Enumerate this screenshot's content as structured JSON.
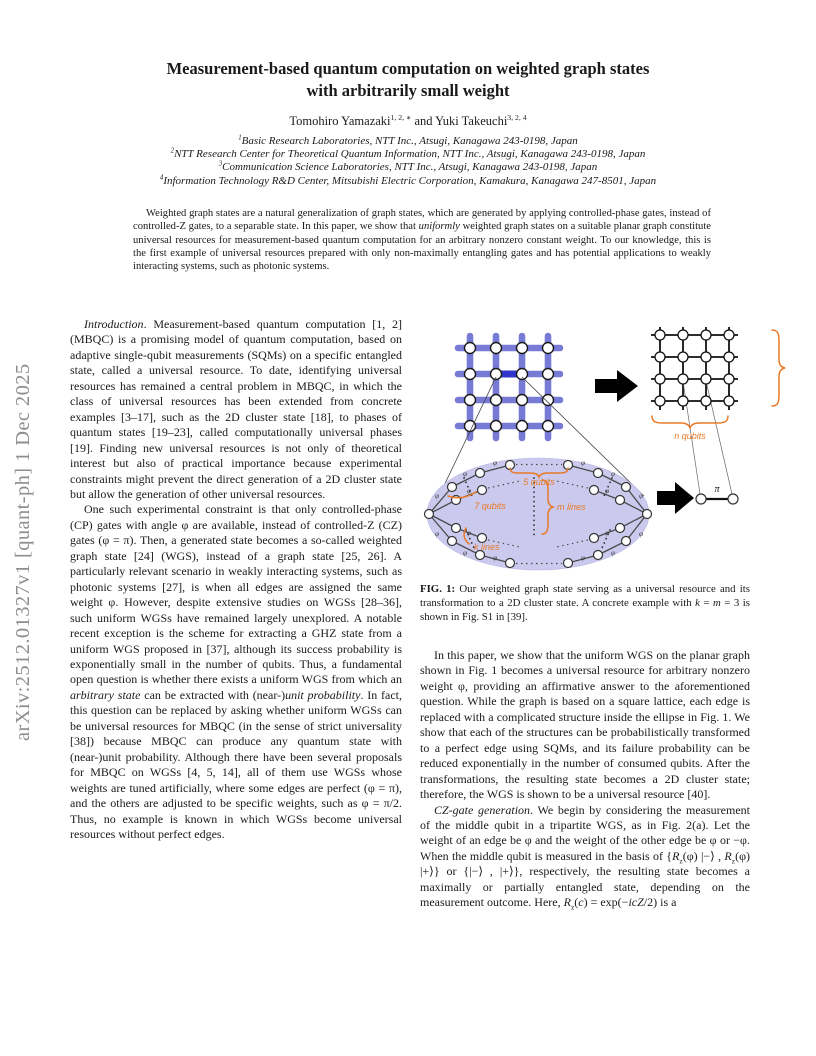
{
  "arxiv_stamp": "arXiv:2512.01327v1  [quant-ph]  1 Dec 2025",
  "header": {
    "title_line1": "Measurement-based quantum computation on weighted graph states",
    "title_line2": "with arbitrarily small weight",
    "authors_segments": [
      {
        "t": "Tomohiro Yamazaki"
      },
      {
        "t": "1, 2, ∗",
        "v": "sup"
      },
      {
        "t": " and Yuki Takeuchi"
      },
      {
        "t": "3, 2, 4",
        "v": "sup"
      }
    ],
    "affiliations": [
      [
        {
          "t": "1",
          "v": "sup"
        },
        {
          "t": "Basic Research Laboratories, NTT Inc., Atsugi, Kanagawa 243-0198, Japan"
        }
      ],
      [
        {
          "t": "2",
          "v": "sup"
        },
        {
          "t": "NTT Research Center for Theoretical Quantum Information, NTT Inc., Atsugi, Kanagawa 243-0198, Japan"
        }
      ],
      [
        {
          "t": "3",
          "v": "sup"
        },
        {
          "t": "Communication Science Laboratories, NTT Inc., Atsugi, Kanagawa 243-0198, Japan"
        }
      ],
      [
        {
          "t": "4",
          "v": "sup"
        },
        {
          "t": "Information Technology R&D Center, Mitsubishi Electric Corporation, Kamakura, Kanagawa 247-8501, Japan"
        }
      ]
    ]
  },
  "abstract": {
    "segments": [
      {
        "t": "Weighted graph states are a natural generalization of graph states, which are generated by applying controlled-phase gates, instead of controlled-Z gates, to a separable state. In this paper, we show that "
      },
      {
        "t": "uniformly",
        "v": "i"
      },
      {
        "t": " weighted graph states on a suitable planar graph constitute universal resources for measurement-based quantum computation for an arbitrary nonzero constant weight. To our knowledge, this is the first example of universal resources prepared with only non-maximally entangling gates and has potential applications to weakly interacting systems, such as photonic systems."
      }
    ]
  },
  "left_column": {
    "para1_segments": [
      {
        "t": "Introduction",
        "v": "i"
      },
      {
        "t": ". Measurement-based quantum computation [1, 2] (MBQC) is a promising model of quantum computation, based on adaptive single-qubit measurements (SQMs) on a specific entangled state, called a universal resource. To date, identifying universal resources has remained a central problem in MBQC, in which the class of universal resources has been extended from concrete examples [3–17], such as the 2D cluster state [18], to phases of quantum states [19–23], called computationally universal phases [19]. Finding new universal resources is not only of theoretical interest but also of practical importance because experimental constraints might prevent the direct generation of a 2D cluster state but allow the generation of other universal resources."
      }
    ],
    "para2_segments": [
      {
        "t": "One such experimental constraint is that only controlled-phase (CP) gates with angle φ are available, instead of controlled-Z (CZ) gates (φ = π). Then, a generated state becomes a so-called weighted graph state [24] (WGS), instead of a graph state [25, 26]. A particularly relevant scenario in weakly interacting systems, such as photonic systems [27], is when all edges are assigned the same weight φ. However, despite extensive studies on WGSs [28–36], such uniform WGSs have remained largely unexplored. A notable recent exception is the scheme for extracting a GHZ state from a uniform WGS proposed in [37], although its success probability is exponentially small in the number of qubits. Thus, a fundamental open question is whether there exists a uniform WGS from which an "
      },
      {
        "t": "arbitrary state",
        "v": "i"
      },
      {
        "t": " can be extracted with (near-)"
      },
      {
        "t": "unit probability",
        "v": "i"
      },
      {
        "t": ". In fact, this question can be replaced by asking whether uniform WGSs can be universal resources for MBQC (in the sense of strict universality [38]) because MBQC can produce any quantum state with (near-)unit probability. Although there have been several proposals for MBQC on WGSs [4, 5, 14], all of them use WGSs whose weights are tuned artificially, where some edges are perfect (φ = π), and the others are adjusted to be specific weights, such as φ = π/2. Thus, no example is known in which WGSs become universal resources without perfect edges."
      }
    ]
  },
  "figure": {
    "colors": {
      "accent": "#e87a28",
      "lattice": "#787bd6",
      "highlight": "#3036c9",
      "ellipse": "#cbc9ed",
      "stamp": "#8e8e90"
    },
    "labels": {
      "phi": "φ",
      "pi": "π",
      "n_qubits": "n qubits",
      "five_qubits": "5 qubits",
      "seven_qubits": "7 qubits",
      "m_lines": "m lines",
      "k_lines": "k lines"
    }
  },
  "caption": {
    "segments": [
      {
        "t": "FIG. 1: ",
        "v": "b"
      },
      {
        "t": "Our weighted graph state serving as a universal resource and its transformation to a 2D cluster state. A concrete example with "
      },
      {
        "t": "k",
        "v": "i"
      },
      {
        "t": " = "
      },
      {
        "t": "m",
        "v": "i"
      },
      {
        "t": " = 3 is shown in Fig. S1 in [39]."
      }
    ]
  },
  "right_column": {
    "para1_segments": [
      {
        "t": "In this paper, we show that the uniform WGS on the planar graph shown in Fig. 1 becomes a universal resource for arbitrary nonzero weight φ, providing an affirmative answer to the aforementioned question. While the graph is based on a square lattice, each edge is replaced with a complicated structure inside the ellipse in Fig. 1. We show that each of the structures can be probabilistically transformed to a perfect edge using SQMs, and its failure probability can be reduced exponentially in the number of consumed qubits. After the transformations, the resulting state becomes a 2D cluster state; therefore, the WGS is shown to be a universal resource [40]."
      }
    ],
    "para2_segments": [
      {
        "t": "CZ-gate generation",
        "v": "i"
      },
      {
        "t": ". We begin by considering the measurement of the middle qubit in a tripartite WGS, as in Fig. 2(a). Let the weight of an edge be φ and the weight of the other edge be φ or −φ. When the middle qubit is measured in the basis of {"
      },
      {
        "t": "R",
        "v": "i"
      },
      {
        "t": "z",
        "v": "sub"
      },
      {
        "t": "(φ) |−⟩ , "
      },
      {
        "t": "R",
        "v": "i"
      },
      {
        "t": "z",
        "v": "sub"
      },
      {
        "t": "(φ) |+⟩} or {|−⟩ , |+⟩}, respectively, the resulting state becomes a maximally or partially entangled state, depending on the measurement outcome. Here, "
      },
      {
        "t": "R",
        "v": "i"
      },
      {
        "t": "z",
        "v": "sub"
      },
      {
        "t": "("
      },
      {
        "t": "c",
        "v": "i"
      },
      {
        "t": ") = exp(−"
      },
      {
        "t": "icZ",
        "v": "i"
      },
      {
        "t": "/2) is a"
      }
    ]
  }
}
